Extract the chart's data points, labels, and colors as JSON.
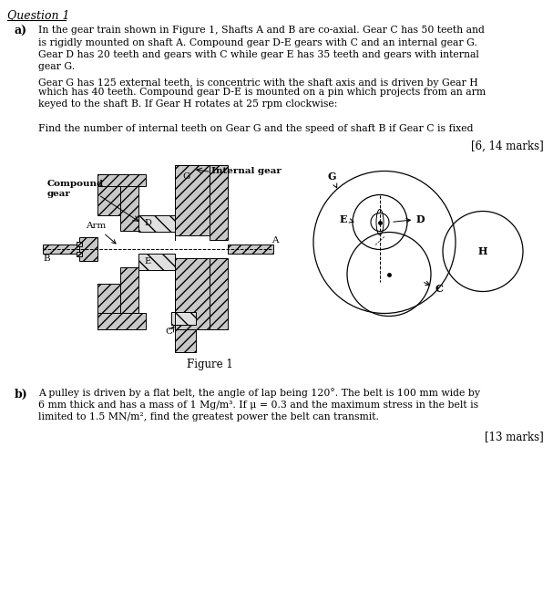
{
  "title": "Question 1",
  "part_a_label": "a)",
  "part_a_text_lines": [
    "In the gear train shown in Figure 1, Shafts A and B are co-axial. Gear C has 50 teeth and",
    "is rigidly mounted on shaft A. Compound gear D-E gears with C and an internal gear G.",
    "Gear D has 20 teeth and gears with C while gear E has 35 teeth and gears with internal",
    "gear G.",
    "Gear G has 125 external teeth, is concentric with the shaft axis and is driven by Gear H",
    "which has 40 teeth. Compound gear D-E is mounted on a pin which projects from an arm",
    "keyed to the shaft B. If Gear H rotates at 25 rpm clockwise:"
  ],
  "find_text": "Find the number of internal teeth on Gear G and the speed of shaft B if Gear C is fixed",
  "marks_a": "[6, 14 marks]",
  "figure_label": "Figure 1",
  "compound_gear_label": "Compound\ngear",
  "internal_gear_label": "Internal gear",
  "arm_label": "Arm",
  "part_b_label": "b)",
  "part_b_text_lines": [
    "A pulley is driven by a flat belt, the angle of lap being 120°. The belt is 100 mm wide by",
    "6 mm thick and has a mass of 1 Mg/m³. If μ = 0.3 and the maximum stress in the belt is",
    "limited to 1.5 MN/m², find the greatest power the belt can transmit."
  ],
  "marks_b": "[13 marks]",
  "bg_color": "#ffffff",
  "text_color": "#000000"
}
